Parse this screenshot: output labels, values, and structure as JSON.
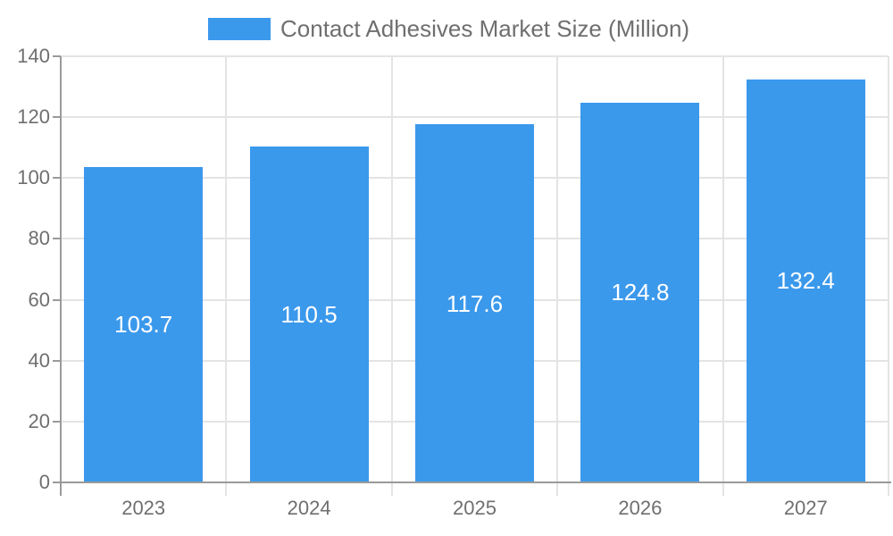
{
  "chart_data": {
    "type": "bar",
    "title": "Contact Adhesives Market Size (Million)",
    "categories": [
      "2023",
      "2024",
      "2025",
      "2026",
      "2027"
    ],
    "series": [
      {
        "name": "Contact Adhesives Market Size (Million)",
        "values": [
          103.7,
          110.5,
          117.6,
          124.8,
          132.4
        ]
      }
    ],
    "xlabel": "",
    "ylabel": "",
    "ylim": [
      0,
      140
    ],
    "ytick_step": 20,
    "ytick_labels": [
      "0",
      "20",
      "40",
      "60",
      "80",
      "100",
      "120",
      "140"
    ],
    "grid": true,
    "legend_position": "top-center",
    "value_labels": "inside-center",
    "colors": {
      "bar": "#3B99EC",
      "bar_value_text": "#FFFFFF",
      "axis_text": "#6F6F6F",
      "axis_line": "#9A9A9A",
      "gridline": "#E4E4E4",
      "background": "#FFFFFF"
    }
  }
}
